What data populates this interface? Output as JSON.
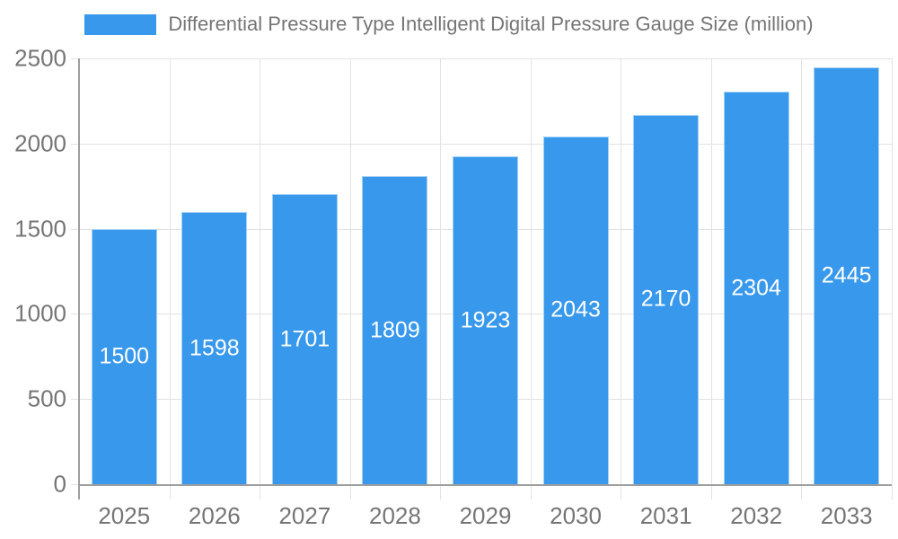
{
  "chart_data": {
    "type": "bar",
    "title": "Differential Pressure Type Intelligent Digital Pressure Gauge Size (million)",
    "categories": [
      "2025",
      "2026",
      "2027",
      "2028",
      "2029",
      "2030",
      "2031",
      "2032",
      "2033"
    ],
    "values": [
      1500,
      1598,
      1701,
      1809,
      1923,
      2043,
      2170,
      2304,
      2445
    ],
    "xlabel": "",
    "ylabel": "",
    "ylim": [
      0,
      2500
    ],
    "yticks": [
      0,
      500,
      1000,
      1500,
      2000,
      2500
    ],
    "grid": true,
    "legend_position": "top",
    "value_label_position": "inside-center"
  },
  "colors": {
    "bar": "#3898ec",
    "bar_border": "rgba(255,255,255,0.55)",
    "grid": "#e2e2e2",
    "axis": "#9e9e9e",
    "tick_text": "#757575",
    "value_text": "#ffffff",
    "background": "#ffffff"
  }
}
